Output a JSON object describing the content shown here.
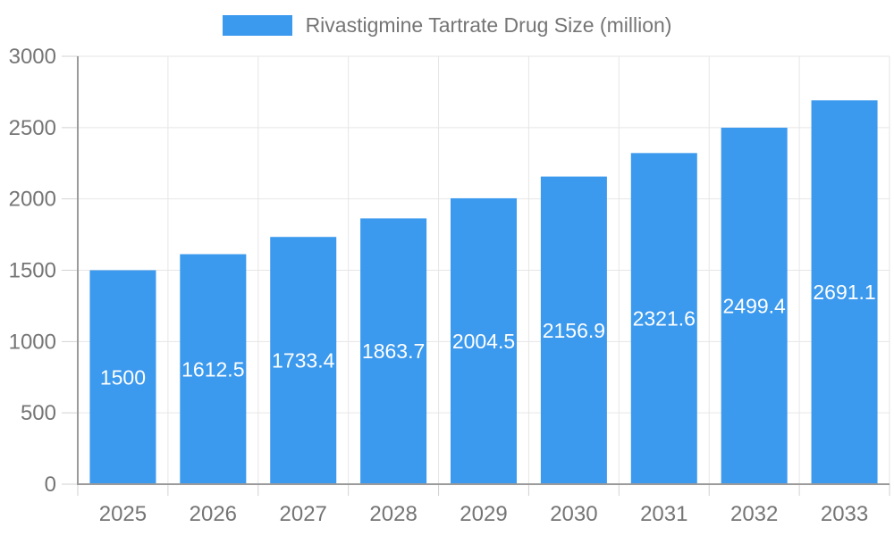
{
  "chart_data": {
    "type": "bar",
    "title": "Rivastigmine Tartrate Drug Size (million)",
    "categories": [
      "2025",
      "2026",
      "2027",
      "2028",
      "2029",
      "2030",
      "2031",
      "2032",
      "2033"
    ],
    "values": [
      1500,
      1612.5,
      1733.4,
      1863.7,
      2004.5,
      2156.9,
      2321.6,
      2499.4,
      2691.1
    ],
    "bar_labels": [
      "1500",
      "1612.5",
      "1733.4",
      "1863.7",
      "2004.5",
      "2156.9",
      "2321.6",
      "2499.4",
      "2691.1"
    ],
    "xlabel": "",
    "ylabel": "",
    "ylim": [
      0,
      3000
    ],
    "yticks": [
      0,
      500,
      1000,
      1500,
      2000,
      2500,
      3000
    ],
    "legend_position": "top",
    "grid": true,
    "colors": {
      "bar": "#3b99ee",
      "axis_text": "#757575",
      "grid_line": "#e6e6e6",
      "axis_line": "#9b9b9b",
      "tick_line": "#d2d2d2",
      "bar_label": "#ffffff",
      "background": "#ffffff"
    }
  }
}
